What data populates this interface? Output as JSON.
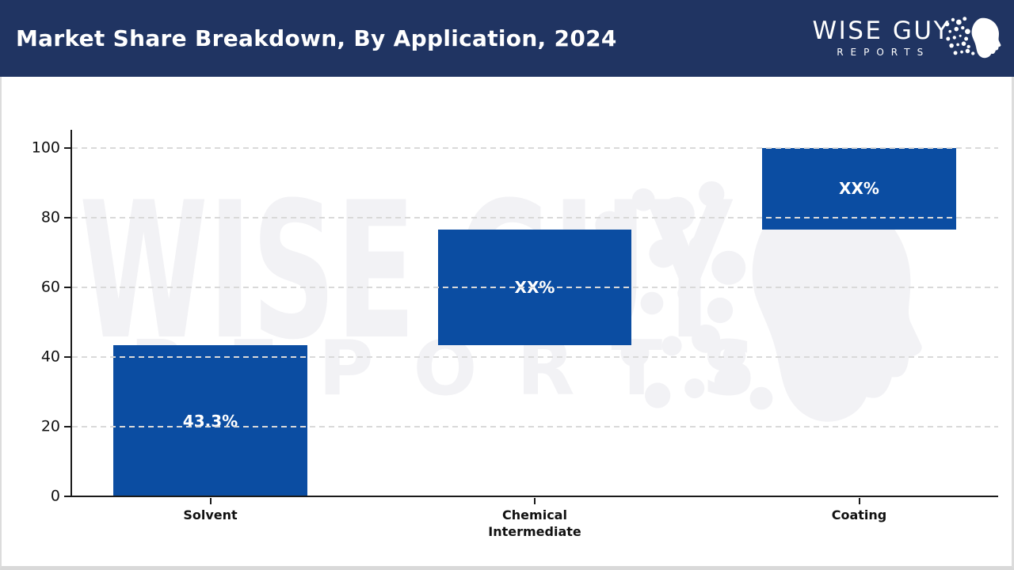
{
  "header": {
    "title": "Market Share Breakdown, By Application, 2024",
    "bg_color": "#203462",
    "title_color": "#ffffff",
    "logo": {
      "wordmark": "WISE GUY",
      "subtitle": "REPORTS"
    }
  },
  "watermark": {
    "wordmark": "WISE GUY",
    "subtitle": "REPORTS"
  },
  "chart_data": {
    "type": "bar",
    "variant": "stacked-waterfall",
    "title": "Market Share Breakdown, By Application, 2024",
    "categories": [
      "Solvent",
      "Chemical Intermediate",
      "Coating"
    ],
    "bars": [
      {
        "category": "Solvent",
        "start": 0,
        "end": 43.3,
        "value_label": "43.3%"
      },
      {
        "category": "Chemical Intermediate",
        "start": 43.3,
        "end": 76.7,
        "value_label": "XX%"
      },
      {
        "category": "Coating",
        "start": 76.7,
        "end": 100,
        "value_label": "XX%"
      }
    ],
    "xlabel": "",
    "ylabel": "",
    "ylim": [
      0,
      100
    ],
    "yticks": [
      0,
      20,
      40,
      60,
      80,
      100
    ],
    "grid": "horizontal-dashed",
    "grid_color": "#d9d9d9",
    "legend": "none",
    "bar_color": "#0b4da2",
    "bar_label_color": "#ffffff",
    "axis_color": "#1a1a1a"
  }
}
